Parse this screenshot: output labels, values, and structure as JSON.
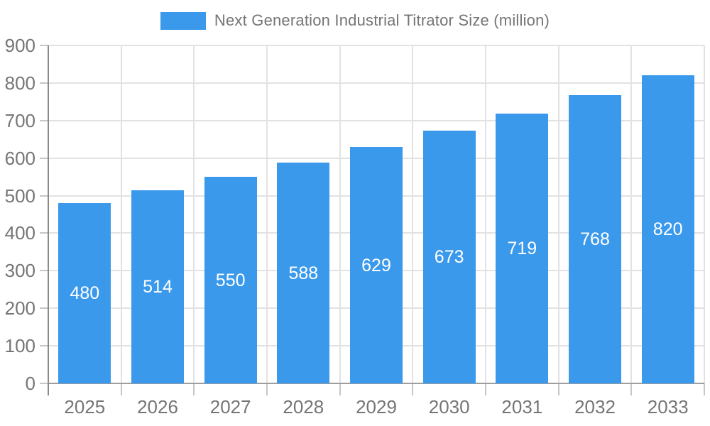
{
  "chart_data": {
    "type": "bar",
    "title": "",
    "legend_label": "Next Generation Industrial Titrator Size (million)",
    "legend_position": "top",
    "categories": [
      "2025",
      "2026",
      "2027",
      "2028",
      "2029",
      "2030",
      "2031",
      "2032",
      "2033"
    ],
    "series": [
      {
        "name": "Next Generation Industrial Titrator Size (million)",
        "values": [
          480,
          514,
          550,
          588,
          629,
          673,
          719,
          768,
          820
        ]
      }
    ],
    "xlabel": "",
    "ylabel": "",
    "ylim": [
      0,
      900
    ],
    "ytick_step": 100,
    "yticks": [
      0,
      100,
      200,
      300,
      400,
      500,
      600,
      700,
      800,
      900
    ],
    "grid": true,
    "value_labels": "centered-white",
    "colors": {
      "bar": "#3b99ec",
      "value_label": "#ffffff",
      "axis_text": "#757575",
      "legend_text": "#757575",
      "gridline": "#e2e2e2",
      "axis_line": "#8a8a8a",
      "baseline": "#9e9e9e",
      "tick": "#c6c6c6",
      "background": "#ffffff"
    }
  }
}
